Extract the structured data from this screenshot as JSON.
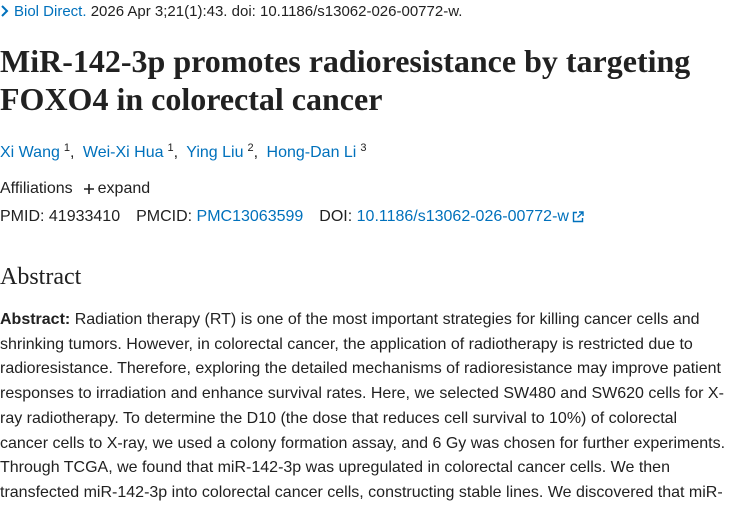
{
  "citation": {
    "journal": "Biol Direct.",
    "details": "2026 Apr 3;21(1):43. doi: 10.1186/s13062-026-00772-w."
  },
  "title": "MiR-142-3p promotes radioresistance by targeting FOXO4 in colorectal cancer",
  "authors": [
    {
      "name": "Xi Wang",
      "affiliation": "1"
    },
    {
      "name": "Wei-Xi Hua",
      "affiliation": "1"
    },
    {
      "name": "Ying Liu",
      "affiliation": "2"
    },
    {
      "name": "Hong-Dan Li",
      "affiliation": "3"
    }
  ],
  "affiliations": {
    "label": "Affiliations",
    "toggle": "expand"
  },
  "identifiers": {
    "pmid_label": "PMID:",
    "pmid": "41933410",
    "pmcid_label": "PMCID:",
    "pmcid": "PMC13063599",
    "doi_label": "DOI:",
    "doi": "10.1186/s13062-026-00772-w"
  },
  "abstract": {
    "heading": "Abstract",
    "label": "Abstract:",
    "lines": [
      "Radiation therapy (RT) is one of the most important strategies for killing cancer cells and",
      "shrinking tumors. However, in colorectal cancer, the application of radiotherapy is restricted due to",
      "radioresistance. Therefore, exploring the detailed mechanisms of radioresistance may improve patient",
      "responses to irradiation and enhance survival rates. Here, we selected SW480 and SW620 cells for X-",
      "ray radiotherapy. To determine the D10 (the dose that reduces cell survival to 10%) of colorectal",
      "cancer cells to X-ray, we used a colony formation assay, and 6 Gy was chosen for further experiments.",
      "Through TCGA, we found that miR-142-3p was upregulated in colorectal cancer cells. We then",
      "transfected miR-142-3p into colorectal cancer cells, constructing stable lines. We discovered that miR-"
    ]
  }
}
